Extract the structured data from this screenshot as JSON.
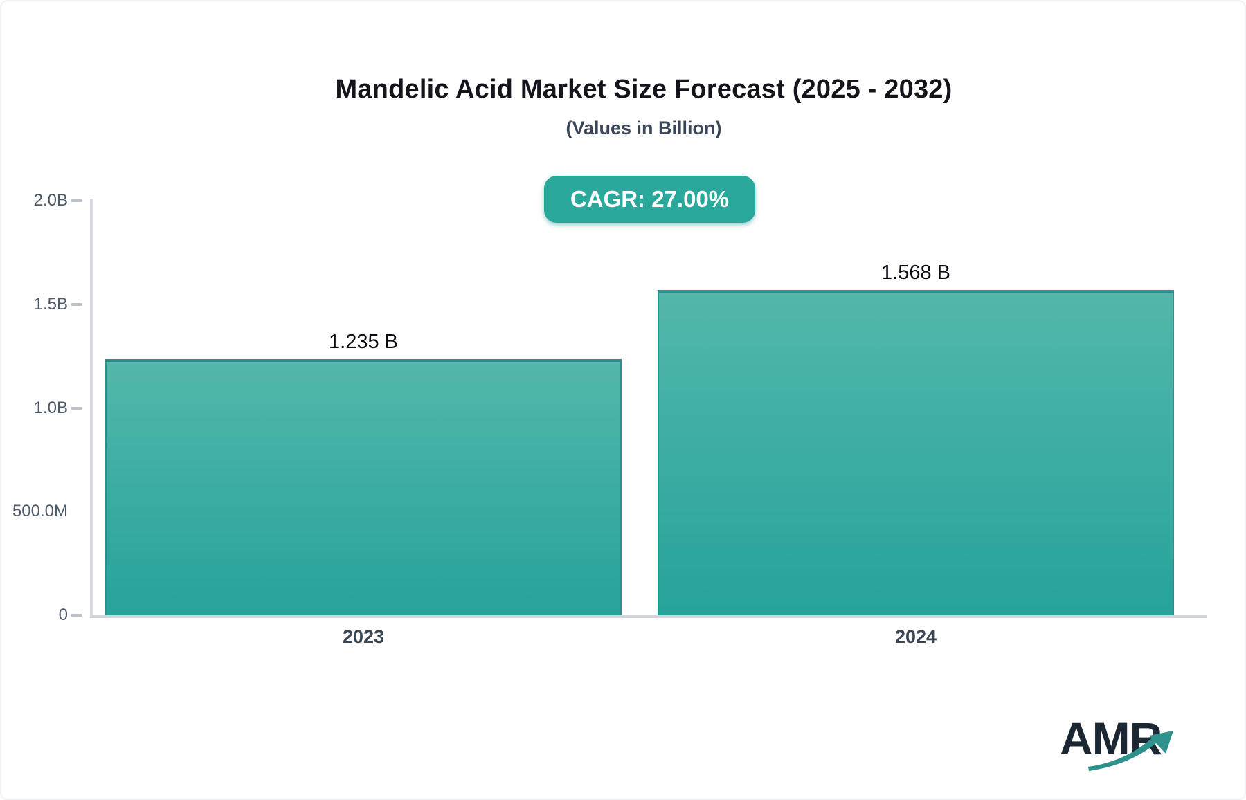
{
  "chart_data": {
    "type": "bar",
    "title": "Mandelic Acid Market Size Forecast (2025 - 2032)",
    "subtitle": "(Values in Billion)",
    "cagr_label": "CAGR: 27.00%",
    "cagr_percent": 27.0,
    "categories": [
      "2023",
      "2024"
    ],
    "values": [
      1.235,
      1.568
    ],
    "value_labels": [
      "1.235 B",
      "1.568 B"
    ],
    "value_unit": "Billion",
    "ylim": [
      0,
      2.0
    ],
    "y_ticks": [
      {
        "label": "2.0B",
        "value": 2.0,
        "dash": true
      },
      {
        "label": "1.5B",
        "value": 1.5,
        "dash": true
      },
      {
        "label": "1.0B",
        "value": 1.0,
        "dash": true
      },
      {
        "label": "500.0M",
        "value": 0.5,
        "dash": false
      },
      {
        "label": "0",
        "value": 0.0,
        "dash": true
      }
    ],
    "grid": false,
    "legend": "none",
    "colors": {
      "bar_top": "#53b7ab",
      "bar_bottom": "#26a39a",
      "bar_edge": "#2b9089",
      "badge_background": "#2aa89c",
      "axis_line": "#d3d6db",
      "title_text": "#14141c",
      "subtitle_text": "#3a4657",
      "tick_text": "#4d5a6a",
      "category_text": "#3b4654"
    }
  },
  "logo": {
    "text": "AMR",
    "arrow_icon": "trend-up-arrow",
    "text_color": "#1b2733",
    "arrow_color": "#2f918c"
  }
}
